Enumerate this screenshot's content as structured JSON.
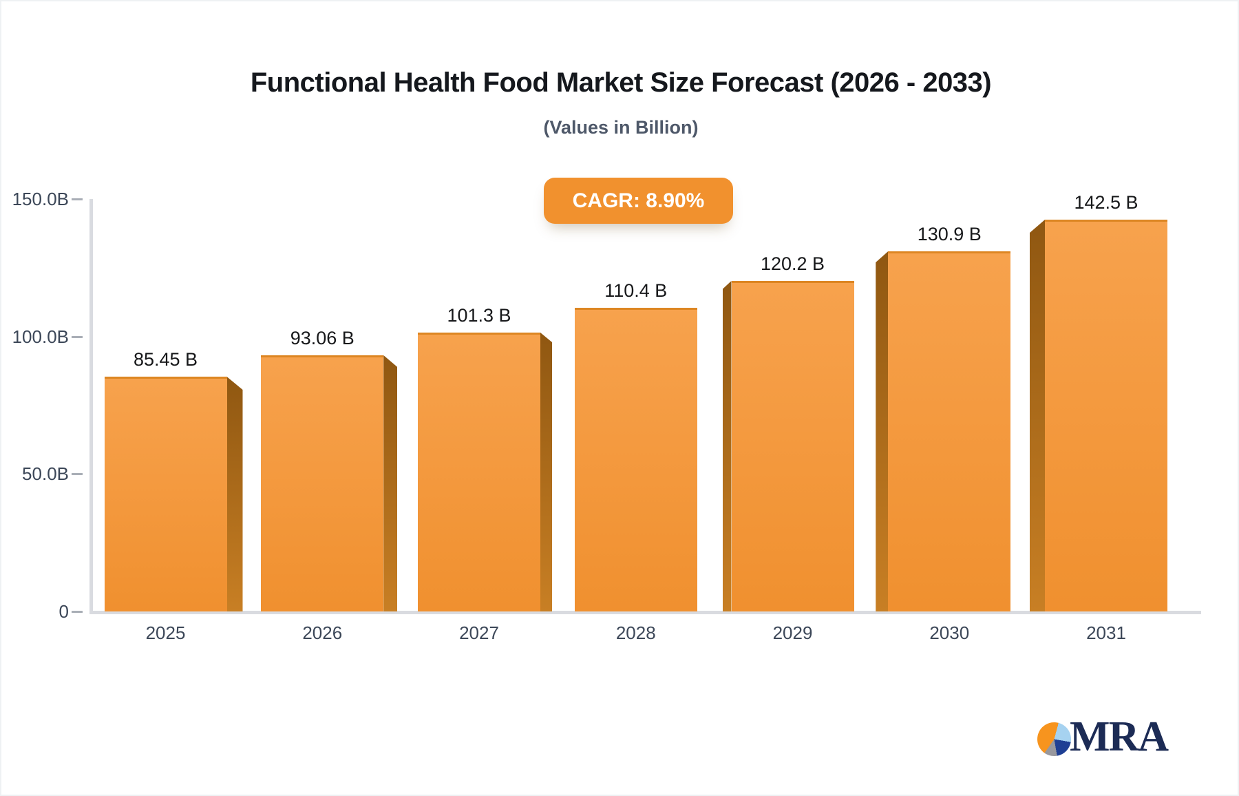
{
  "header": {
    "title": "Functional Health Food Market Size Forecast (2026 - 2033)",
    "subtitle": "(Values in Billion)"
  },
  "badge": {
    "label": "CAGR: 8.90%",
    "background": "#F1912E",
    "text_color": "#FFFFFF"
  },
  "chart_data": {
    "type": "bar",
    "title": "Functional Health Food Market Size Forecast (2026 - 2033)",
    "subtitle": "(Values in Billion)",
    "cagr_label": "CAGR: 8.90%",
    "categories": [
      "2025",
      "2026",
      "2027",
      "2028",
      "2029",
      "2030",
      "2031"
    ],
    "values": [
      85.45,
      93.06,
      101.3,
      110.4,
      120.2,
      130.9,
      142.5
    ],
    "value_labels": [
      "85.45 B",
      "93.06 B",
      "101.3 B",
      "110.4 B",
      "120.2 B",
      "130.9 B",
      "142.5 B"
    ],
    "xlabel": "",
    "ylabel": "",
    "ylim": [
      0,
      150
    ],
    "y_ticks": [
      {
        "label": "150.0B",
        "value": 150
      },
      {
        "label": "100.0B",
        "value": 100
      },
      {
        "label": "50.0B",
        "value": 50
      },
      {
        "label": "0",
        "value": 0
      }
    ],
    "grid": false,
    "legend": "none",
    "bar_color_top": "#F7A24D",
    "bar_color_bottom": "#F0902F",
    "bar_side_color_dark": "#8F5711",
    "bar_side_color_light": "#C87F24",
    "axis_color": "#D9DBE0",
    "tick_text_color": "#3C4758",
    "value_text_color": "#17181A"
  },
  "logo": {
    "text": "MRA",
    "pie_colors": {
      "orange": "#F7941E",
      "light_blue": "#A6D2F0",
      "dark_blue": "#1E3F94",
      "gray": "#98989E"
    }
  }
}
